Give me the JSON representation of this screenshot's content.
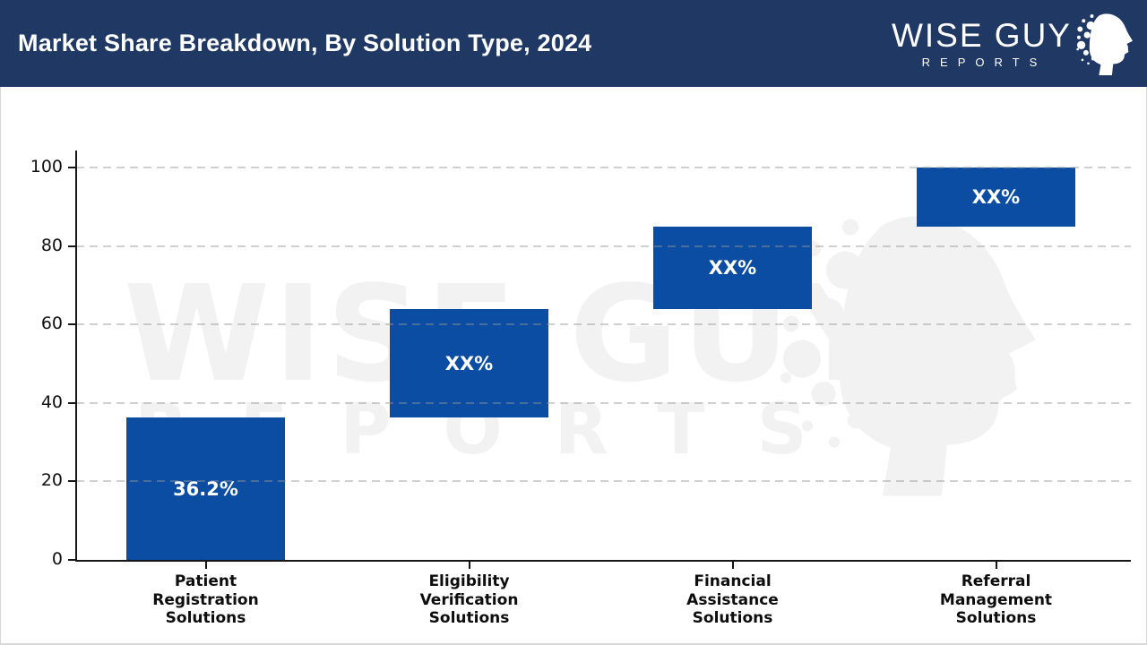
{
  "header": {
    "title": "Market Share Breakdown, By Solution Type, 2024",
    "logo_line1": "WISE GUY",
    "logo_line2": "REPORTS"
  },
  "watermark": {
    "line1": "WISE GUY",
    "line2": "REPORTS"
  },
  "colors": {
    "header_bg": "#1f3864",
    "bar": "#0b4da2",
    "bar_label": "#ffffff",
    "watermark": "#f2f2f2",
    "axis": "#161616",
    "gridline": "#c8c8c8"
  },
  "chart_data": {
    "type": "bar",
    "variant": "waterfall",
    "title": "Market Share Breakdown, By Solution Type, 2024",
    "ylabel": "",
    "xlabel": "",
    "ylim": [
      0,
      100
    ],
    "yticks": [
      0,
      20,
      40,
      60,
      80,
      100
    ],
    "grid": "horizontal-dashed",
    "legend": "none",
    "bar_color": "#0b4da2",
    "categories": [
      "Patient Registration Solutions",
      "Eligibility Verification Solutions",
      "Financial Assistance Solutions",
      "Referral Management Solutions"
    ],
    "category_lines": [
      [
        "Patient",
        "Registration",
        "Solutions"
      ],
      [
        "Eligibility",
        "Verification",
        "Solutions"
      ],
      [
        "Financial",
        "Assistance",
        "Solutions"
      ],
      [
        "Referral",
        "Management",
        "Solutions"
      ]
    ],
    "bars": [
      {
        "category": "Patient Registration Solutions",
        "start": 0,
        "end": 36.2,
        "value": 36.2,
        "label": "36.2%"
      },
      {
        "category": "Eligibility Verification Solutions",
        "start": 36.2,
        "end": 64,
        "value": 27.8,
        "label": "XX%"
      },
      {
        "category": "Financial Assistance Solutions",
        "start": 64,
        "end": 85,
        "value": 21,
        "label": "XX%"
      },
      {
        "category": "Referral Management Solutions",
        "start": 85,
        "end": 100,
        "value": 15,
        "label": "XX%"
      }
    ]
  }
}
